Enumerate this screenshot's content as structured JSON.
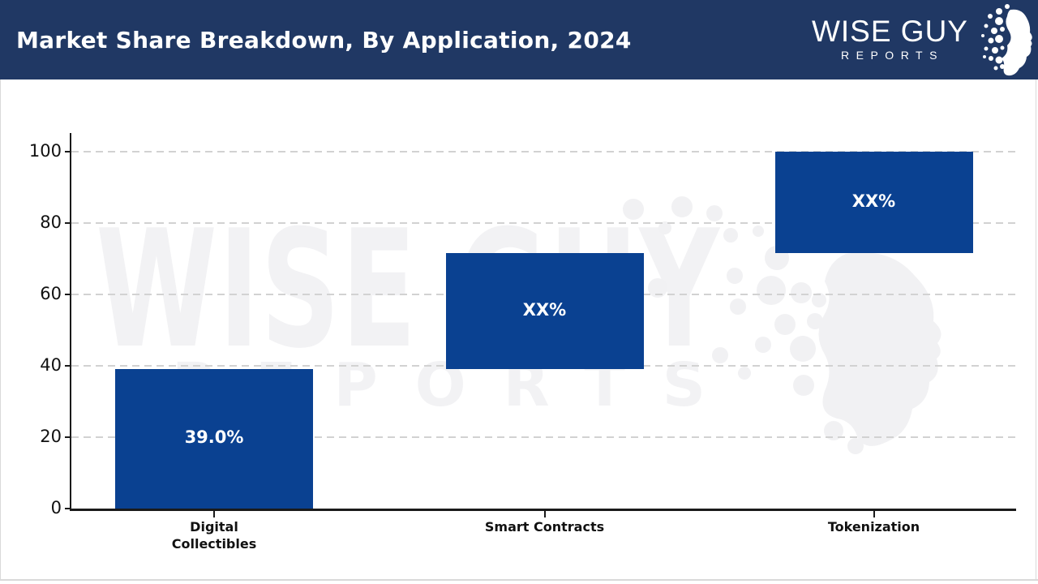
{
  "header": {
    "title": "Market Share Breakdown, By Application, 2024",
    "logo": {
      "name": "WISE GUY",
      "sub": "REPORTS"
    }
  },
  "watermark": {
    "line1": "WISE GUY",
    "line2": "REPORTS"
  },
  "chart_data": {
    "type": "bar",
    "variant": "floating-segment-bars",
    "title": "Market Share Breakdown, By Application, 2024",
    "categories": [
      "Digital\nCollectibles",
      "Smart Contracts",
      "Tokenization"
    ],
    "segments": [
      {
        "category": "Digital Collectibles",
        "start": 0,
        "end": 39,
        "label": "39.0%"
      },
      {
        "category": "Smart Contracts",
        "start": 39,
        "end": 71.5,
        "label": "XX%"
      },
      {
        "category": "Tokenization",
        "start": 71.5,
        "end": 100,
        "label": "XX%"
      }
    ],
    "yticks": [
      0,
      20,
      40,
      60,
      80,
      100
    ],
    "ylim": [
      0,
      105
    ],
    "xlabel": "",
    "ylabel": "",
    "legend": "none",
    "grid": {
      "axis": "y",
      "style": "dashed",
      "color": "#d2d2d2"
    },
    "bar_color": "#0a4191",
    "value_label_color": "#ffffff",
    "axis_color": "#1a1a1a",
    "header_bg_color": "#203864",
    "watermark_text": "WISE GUY REPORTS"
  }
}
